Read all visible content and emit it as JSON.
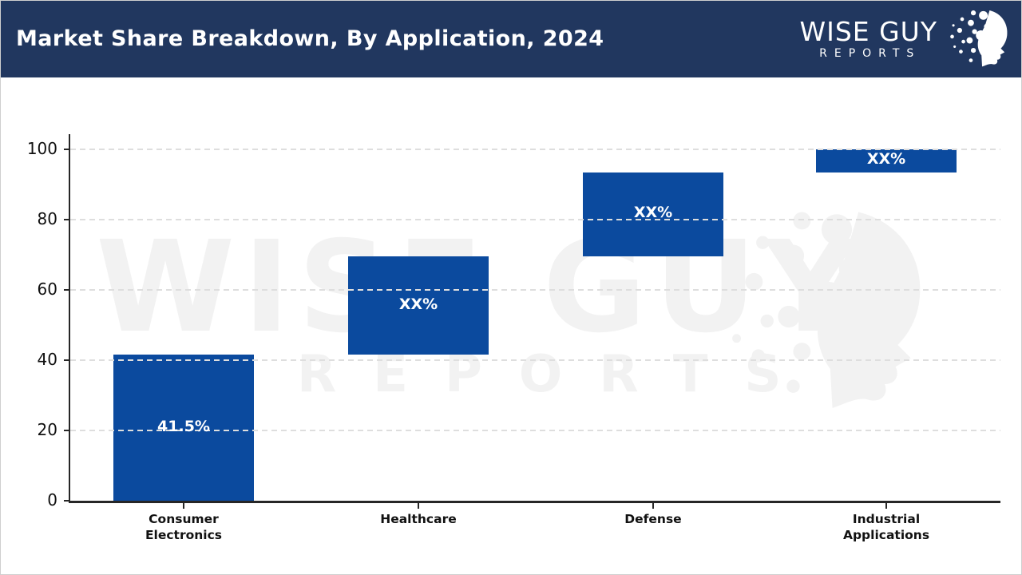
{
  "header": {
    "title": "Market Share Breakdown, By Application, 2024",
    "logo": {
      "brand_line1": "WISE GUY",
      "brand_line2": "REPORTS"
    }
  },
  "watermark": {
    "line1": "WISE GUY",
    "line2": "REPORTS"
  },
  "chart_data": {
    "type": "bar",
    "variant": "waterfall",
    "title": "Market Share Breakdown, By Application, 2024",
    "categories": [
      "Consumer Electronics",
      "Healthcare",
      "Defense",
      "Industrial Applications"
    ],
    "category_label_lines": [
      [
        "Consumer",
        "Electronics"
      ],
      [
        "Healthcare"
      ],
      [
        "Defense"
      ],
      [
        "Industrial",
        "Applications"
      ]
    ],
    "segments": [
      {
        "category": "Consumer Electronics",
        "start": 0,
        "end": 41.5,
        "label": "41.5%"
      },
      {
        "category": "Healthcare",
        "start": 41.5,
        "end": 69.5,
        "label": "XX%"
      },
      {
        "category": "Defense",
        "start": 69.5,
        "end": 93.5,
        "label": "XX%"
      },
      {
        "category": "Industrial Applications",
        "start": 93.5,
        "end": 100,
        "label": "XX%"
      }
    ],
    "ylim": [
      0,
      100
    ],
    "yticks": [
      0,
      20,
      40,
      60,
      80,
      100
    ],
    "xlabel": "",
    "ylabel": "",
    "grid": "horizontal-dashed",
    "legend": "none",
    "colors": {
      "bar": "#0b4a9e",
      "bar_label": "#ffffff",
      "axis": "#262626",
      "header_bg": "#21375f",
      "gridline": "#dedede",
      "watermark": "#f2f2f2"
    }
  }
}
